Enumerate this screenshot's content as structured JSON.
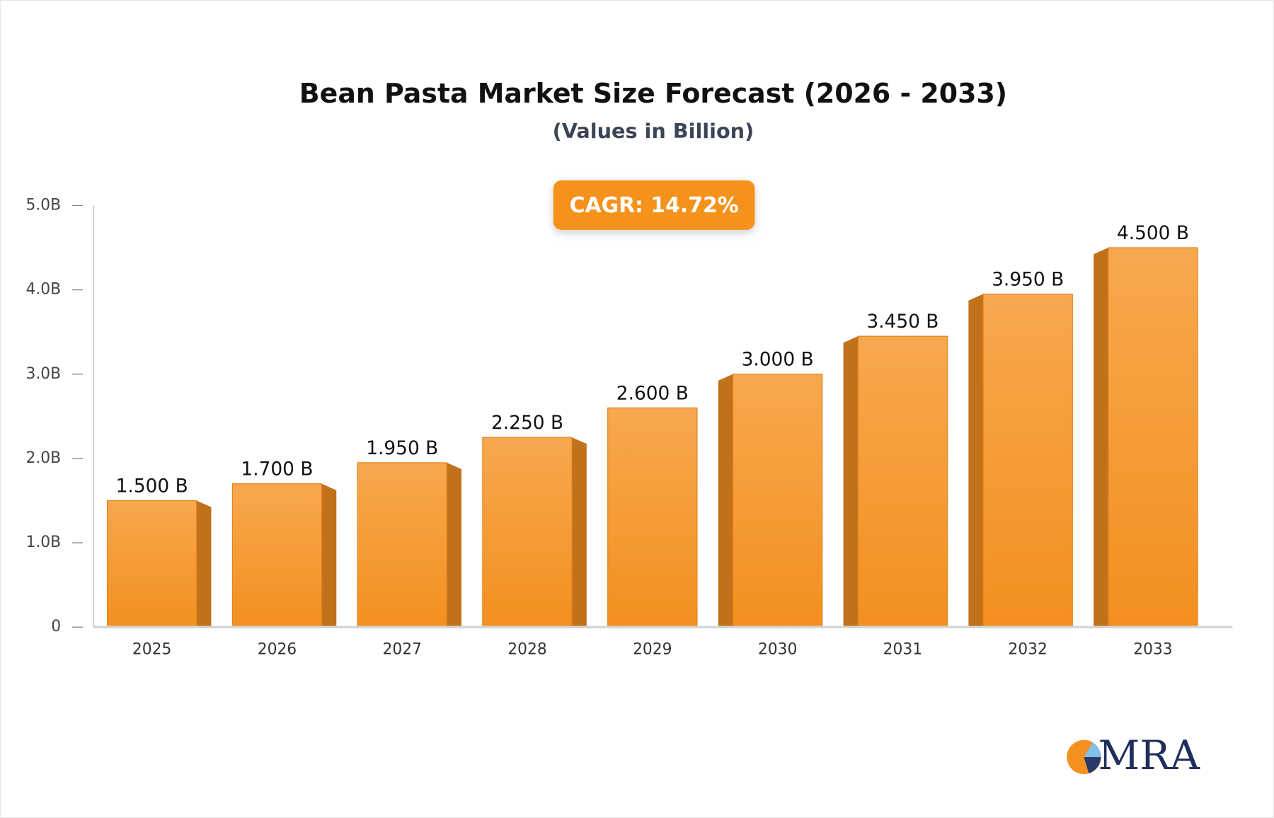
{
  "chart_data": {
    "type": "bar3d",
    "title": "Bean Pasta Market Size Forecast (2026 - 2033)",
    "subtitle": "(Values in Billion)",
    "annotation": "CAGR: 14.72%",
    "categories": [
      "2025",
      "2026",
      "2027",
      "2028",
      "2029",
      "2030",
      "2031",
      "2032",
      "2033"
    ],
    "values": [
      1.5,
      1.7,
      1.95,
      2.25,
      2.6,
      3.0,
      3.45,
      3.95,
      4.5
    ],
    "value_labels": [
      "1.500 B",
      "1.700 B",
      "1.950 B",
      "2.250 B",
      "2.600 B",
      "3.000 B",
      "3.450 B",
      "3.950 B",
      "4.500 B"
    ],
    "color": "#f5962a",
    "ylim": [
      0,
      5
    ],
    "yticks": [
      0,
      {
        "value": 1,
        "label": "1.0B"
      },
      {
        "value": 2,
        "label": "2.0B"
      },
      {
        "value": 3,
        "label": "3.0B"
      },
      {
        "value": 4,
        "label": "4.0B"
      },
      {
        "value": 5,
        "label": "5.0B"
      }
    ],
    "grid": false
  },
  "logo": {
    "text": "MRA"
  }
}
